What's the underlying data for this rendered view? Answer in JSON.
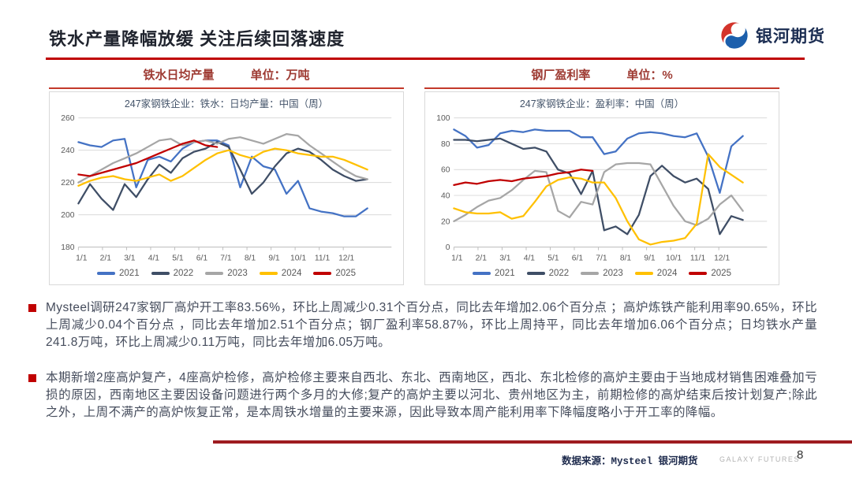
{
  "slide": {
    "title": "铁水产量降幅放缓 关注后续回落速度",
    "logo": {
      "brand": "银河期货"
    },
    "panels": [
      {
        "header": "铁水日均产量",
        "unit": "单位：万吨"
      },
      {
        "header": "钢厂盈利率",
        "unit": "单位：%"
      }
    ],
    "bullets": [
      "Mysteel调研247家钢厂高炉开工率83.56%，环比上周减少0.31个百分点，同比去年增加2.06个百分点 ；高炉炼铁产能利用率90.65%，环比上周减少0.04个百分点 ，同比去年增加2.51个百分点；钢厂盈利率58.87%，环比上周持平，同比去年增加6.06个百分点；日均铁水产量 241.8万吨，环比上周减少0.11万吨，同比去年增加6.05万吨。",
      "本期新增2座高炉复产，4座高炉检修，高炉检修主要来自西北、东北、西南地区，西北、东北检修的高炉主要由于当地成材销售困难叠加亏损的原因，西南地区主要因设备问题进行两个多月的大修;复产的高炉主要以河北、贵州地区为主，前期检修的高炉结束后按计划复产;除此之外，上周不满产的高炉恢复正常，是本周铁水增量的主要来源，因此导致本周产能利用率下降幅度略小于开工率的降幅。"
    ],
    "footer": {
      "source": "数据来源：Mysteel 银河期货",
      "brand_en": "GALAXY FUTURES",
      "page": "8"
    }
  },
  "chart_data": [
    {
      "type": "line",
      "title": "247家钢铁企业：铁水：日均产量：中国（周）",
      "xlabel": "",
      "ylabel": "万吨",
      "ylim": [
        180,
        260
      ],
      "yticks": [
        180,
        200,
        220,
        240,
        260
      ],
      "x_tick_labels": [
        "1/1",
        "2/1",
        "3/1",
        "4/1",
        "5/1",
        "6/1",
        "7/1",
        "8/1",
        "9/1",
        "10/1",
        "11/1",
        "12/1"
      ],
      "grid": true,
      "legend_position": "bottom",
      "series": [
        {
          "name": "2021",
          "color": "#4472C4",
          "values": [
            245,
            243,
            242,
            246,
            247,
            217,
            234,
            236,
            233,
            241,
            245,
            246,
            246,
            243,
            217,
            236,
            230,
            228,
            213,
            221,
            204,
            202,
            201,
            199,
            199,
            204
          ]
        },
        {
          "name": "2022",
          "color": "#3F4E66",
          "values": [
            207,
            219,
            210,
            203,
            219,
            211,
            222,
            231,
            226,
            235,
            239,
            241,
            245,
            242,
            228,
            213,
            220,
            230,
            238,
            241,
            239,
            234,
            228,
            224,
            221,
            222
          ]
        },
        {
          "name": "2023",
          "color": "#A6A6A6",
          "values": [
            220,
            224,
            228,
            232,
            235,
            238,
            242,
            246,
            247,
            243,
            245,
            246,
            244,
            247,
            248,
            246,
            244,
            247,
            250,
            249,
            243,
            238,
            233,
            228,
            224,
            222
          ]
        },
        {
          "name": "2024",
          "color": "#FFC000",
          "values": [
            218,
            221,
            223,
            224,
            222,
            221,
            223,
            225,
            221,
            224,
            229,
            234,
            238,
            240,
            237,
            235,
            239,
            241,
            240,
            238,
            237,
            236,
            236,
            234,
            231,
            228
          ]
        },
        {
          "name": "2025",
          "color": "#C00000",
          "values": [
            225,
            224,
            226,
            228,
            230,
            232,
            235,
            238,
            241,
            244,
            246,
            243,
            242
          ]
        }
      ]
    },
    {
      "type": "line",
      "title": "247家钢铁企业：盈利率：中国（周）",
      "xlabel": "",
      "ylabel": "%",
      "ylim": [
        0,
        100
      ],
      "yticks": [
        0,
        20,
        40,
        60,
        80,
        100
      ],
      "x_tick_labels": [
        "1/1",
        "2/1",
        "3/1",
        "4/1",
        "5/1",
        "6/1",
        "7/1",
        "8/1",
        "9/1",
        "10/1",
        "11/1",
        "12/1"
      ],
      "grid": true,
      "legend_position": "bottom",
      "series": [
        {
          "name": "2021",
          "color": "#4472C4",
          "values": [
            91,
            86,
            77,
            79,
            88,
            90,
            89,
            91,
            90,
            90,
            90,
            85,
            85,
            72,
            74,
            84,
            88,
            89,
            88,
            86,
            85,
            88,
            70,
            42,
            78,
            86
          ]
        },
        {
          "name": "2022",
          "color": "#3F4E66",
          "values": [
            83,
            83,
            82,
            83,
            84,
            80,
            76,
            77,
            74,
            60,
            57,
            41,
            59,
            13,
            16,
            10,
            25,
            55,
            63,
            55,
            50,
            53,
            45,
            10,
            24,
            21
          ]
        },
        {
          "name": "2023",
          "color": "#A6A6A6",
          "values": [
            20,
            25,
            31,
            36,
            38,
            44,
            52,
            59,
            58,
            28,
            23,
            35,
            33,
            58,
            64,
            65,
            65,
            64,
            48,
            32,
            20,
            17,
            22,
            33,
            40,
            28
          ]
        },
        {
          "name": "2024",
          "color": "#FFC000",
          "values": [
            30,
            27,
            26,
            26,
            27,
            22,
            24,
            35,
            47,
            52,
            54,
            53,
            50,
            50,
            38,
            20,
            6,
            2,
            4,
            5,
            7,
            18,
            72,
            62,
            56,
            50
          ]
        },
        {
          "name": "2025",
          "color": "#C00000",
          "values": [
            48,
            50,
            49,
            51,
            52,
            51,
            53,
            54,
            55,
            57,
            58,
            60,
            59
          ]
        }
      ]
    }
  ]
}
